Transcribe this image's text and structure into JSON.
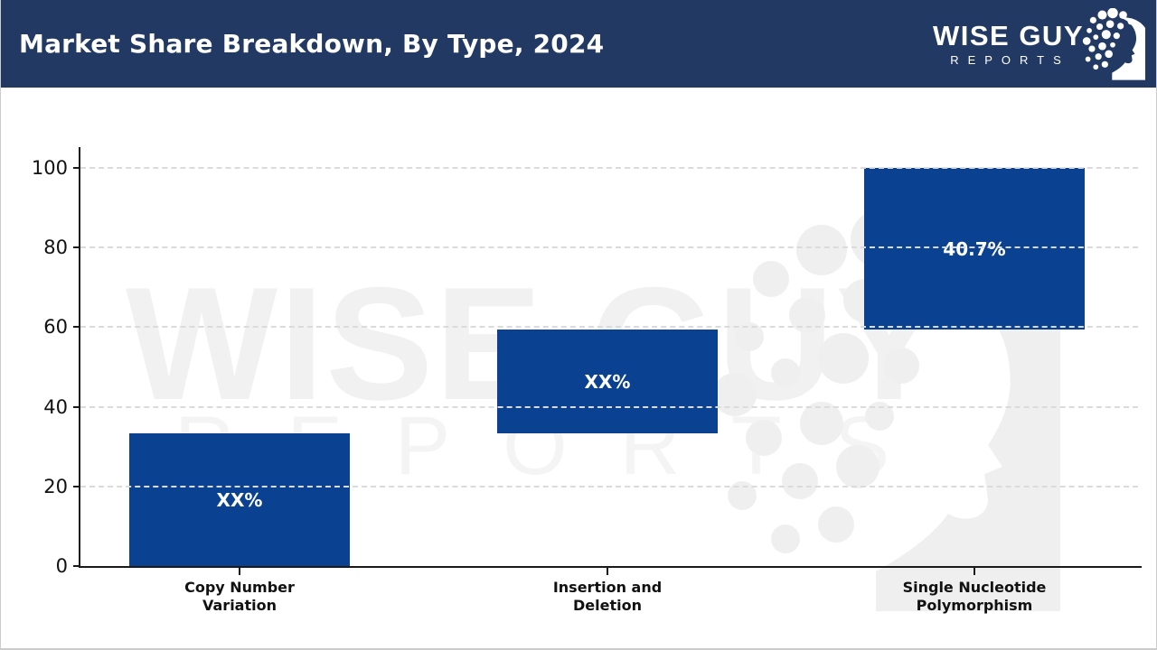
{
  "header": {
    "title": "Market Share Breakdown, By Type, 2024",
    "logo_line1": "WISE GUY",
    "logo_line2": "REPORTS"
  },
  "watermark": {
    "line1": "WISE GUY",
    "line2": "REPORTS"
  },
  "colors": {
    "header_bg": "#223A63",
    "bar": "#0B4191",
    "bar_label": "#FFFFFF",
    "grid": "#DBDBDB",
    "axis": "#1A1A1A",
    "watermark": "#F1F1F1",
    "frame_border": "#CCCCCC"
  },
  "chart_data": {
    "type": "bar",
    "subtype": "floating-segment (stacked market-share breakdown)",
    "title": "Market Share Breakdown, By Type, 2024",
    "categories": [
      "Copy Number Variation",
      "Insertion and Deletion",
      "Single Nucleotide Polymorphism"
    ],
    "category_lines": [
      [
        "Copy Number",
        "Variation"
      ],
      [
        "Insertion and",
        "Deletion"
      ],
      [
        "Single Nucleotide",
        "Polymorphism"
      ]
    ],
    "bars": [
      {
        "category": "Copy Number Variation",
        "start": 0,
        "end": 33.3,
        "value_label": "XX%"
      },
      {
        "category": "Insertion and Deletion",
        "start": 33.3,
        "end": 59.3,
        "value_label": "XX%"
      },
      {
        "category": "Single Nucleotide Polymorphism",
        "start": 59.3,
        "end": 100,
        "value_label": "40.7%"
      }
    ],
    "yticks": [
      0,
      20,
      40,
      60,
      80,
      100
    ],
    "ylim": [
      0,
      100
    ],
    "xlabel": "",
    "ylabel": "",
    "grid": "horizontal dashed, rendered over bars",
    "legend": "none"
  }
}
